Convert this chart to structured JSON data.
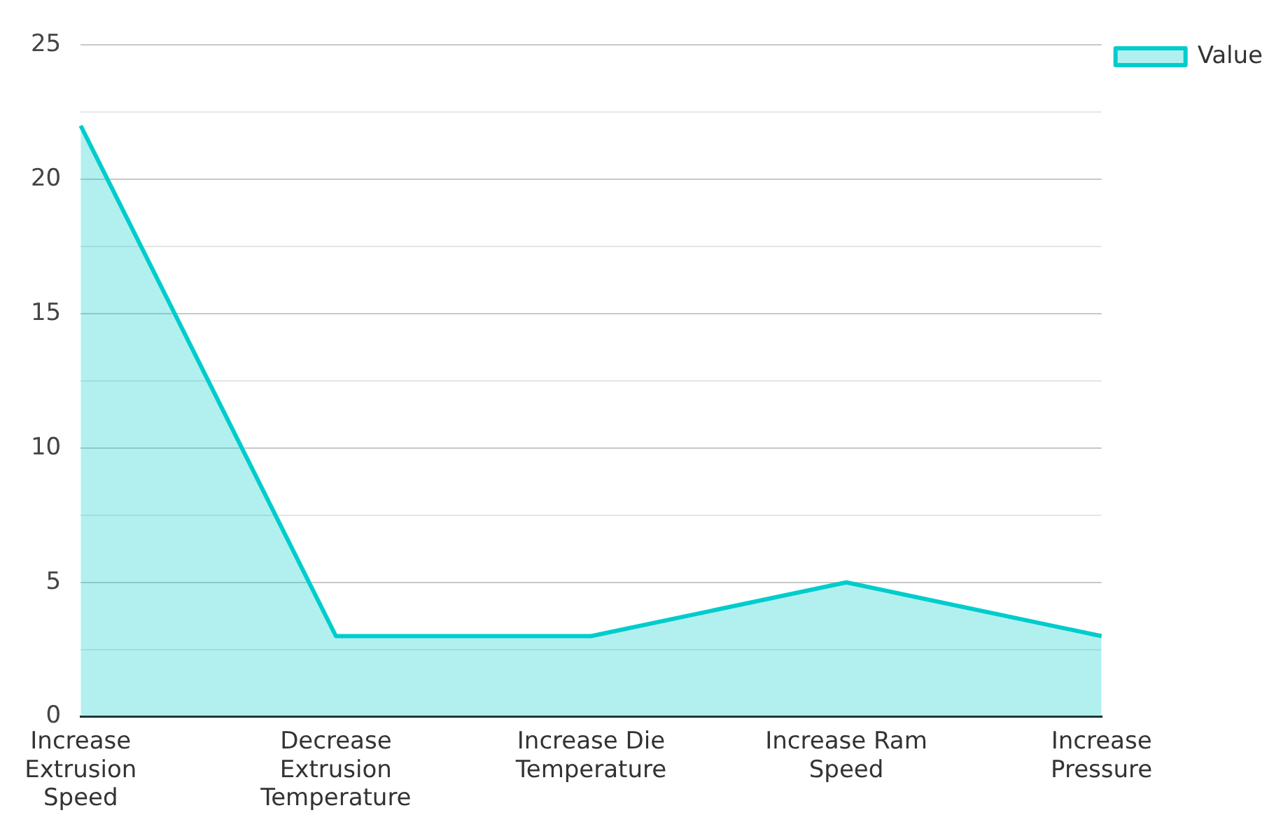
{
  "chart_data": {
    "type": "area",
    "categories": [
      "Increase Extrusion Speed",
      "Decrease Extrusion Temperature",
      "Increase Die Temperature",
      "Increase Ram Speed",
      "Increase Pressure"
    ],
    "series": [
      {
        "name": "Value",
        "color": "#00cccc",
        "values": [
          22,
          3,
          3,
          5,
          3
        ]
      }
    ],
    "ylim": [
      0,
      25
    ],
    "yticks": [
      0,
      {
        "value": 2.5,
        "label": null
      },
      5,
      {
        "value": 7.5,
        "label": null
      },
      10,
      {
        "value": 12.5,
        "label": null
      },
      15,
      {
        "value": 17.5,
        "label": null
      },
      20,
      {
        "value": 22.5,
        "label": null
      },
      25
    ],
    "grid": "y",
    "legend": "top right",
    "marker": "none",
    "line_style": "solid"
  }
}
